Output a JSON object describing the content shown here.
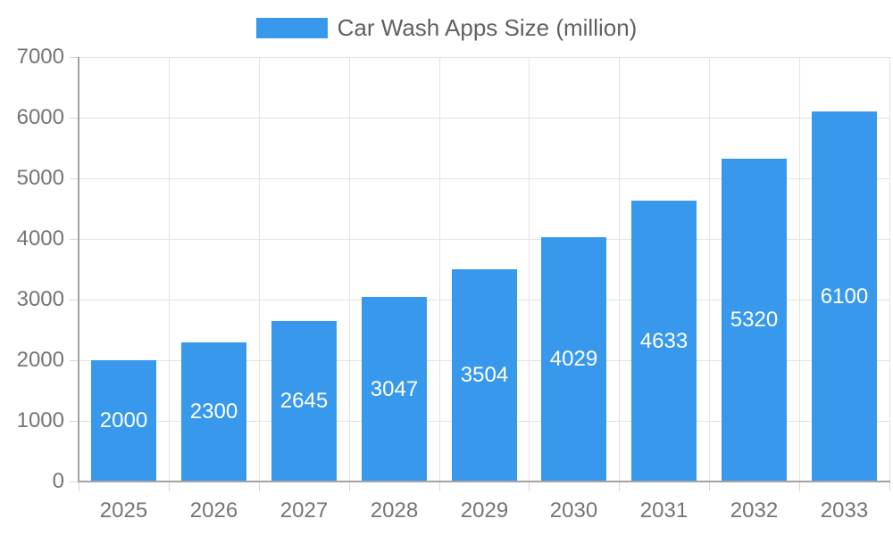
{
  "chart_data": {
    "type": "bar",
    "title": "Car Wash Apps Size (million)",
    "legend": {
      "labels": [
        "Car Wash Apps Size (million)"
      ],
      "position": "top"
    },
    "categories": [
      "2025",
      "2026",
      "2027",
      "2028",
      "2029",
      "2030",
      "2031",
      "2032",
      "2033"
    ],
    "values": [
      2000,
      2300,
      2645,
      3047,
      3504,
      4029,
      4633,
      5320,
      6100
    ],
    "value_labels": [
      "2000",
      "2300",
      "2645",
      "3047",
      "3504",
      "4029",
      "4633",
      "5320",
      "6100"
    ],
    "value_label_position": "inside-center",
    "xlabel": "",
    "ylabel": "",
    "ylim": [
      0,
      7000
    ],
    "ytick_step": 1000,
    "y_tick_labels": [
      "0",
      "1000",
      "2000",
      "3000",
      "4000",
      "5000",
      "6000",
      "7000"
    ],
    "grid": true,
    "colors": {
      "bar": "#3899ec",
      "value_label_text": "#ffffff",
      "axis_line": "#a3a3a3",
      "grid_line": "#e3e3e3",
      "tick_mark": "#d6d6d6",
      "tick_label_text": "#757575",
      "legend_text": "#616161",
      "background": "#ffffff"
    }
  }
}
